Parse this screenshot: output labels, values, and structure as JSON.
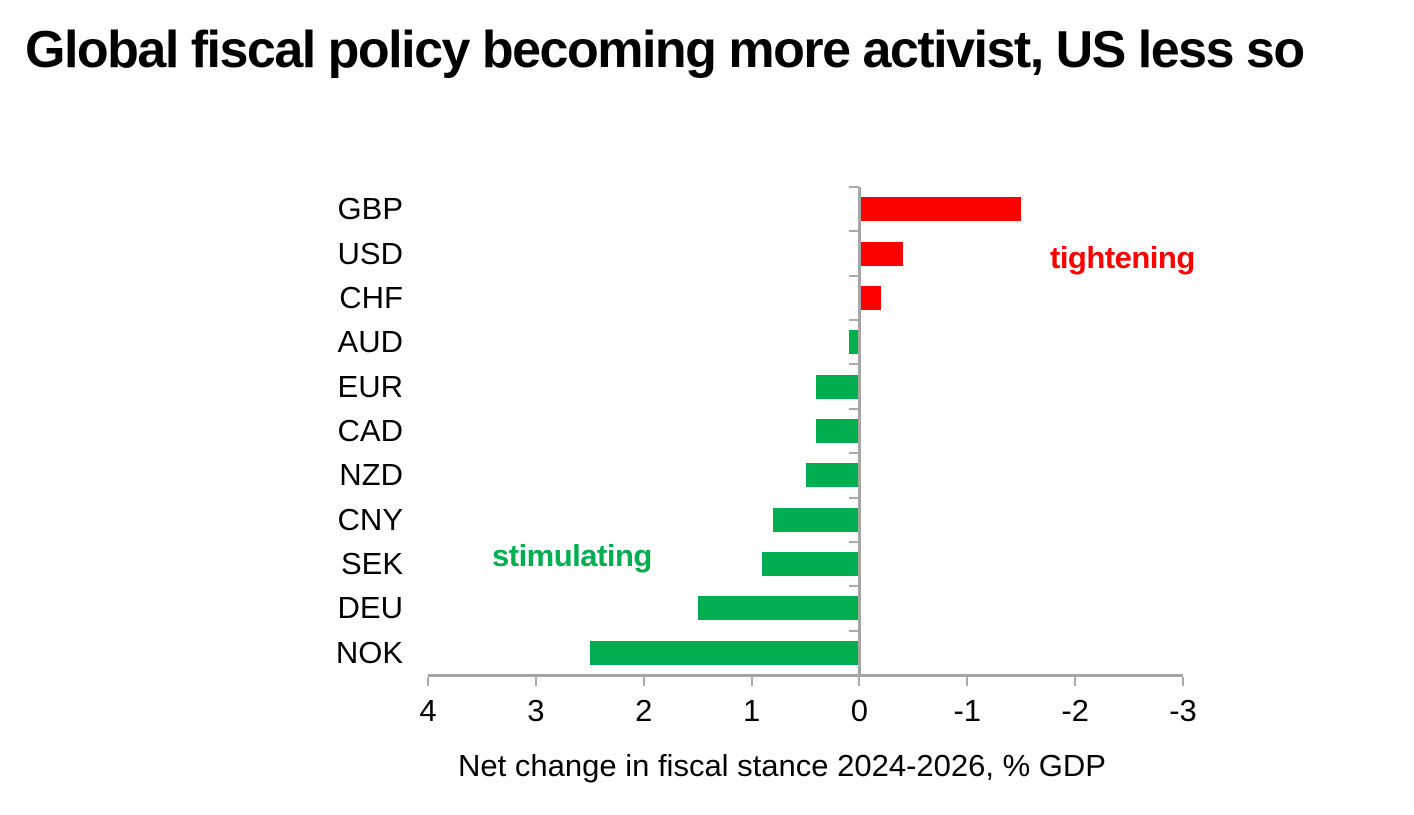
{
  "page": {
    "background": "#FFFFFF"
  },
  "header": {
    "title": "Global fiscal policy becoming more activist, US less so"
  },
  "chart_data": {
    "type": "bar",
    "orientation": "horizontal",
    "title": "Global fiscal policy becoming more activist, US less so",
    "categories": [
      "GBP",
      "USD",
      "CHF",
      "AUD",
      "EUR",
      "CAD",
      "NZD",
      "CNY",
      "SEK",
      "DEU",
      "NOK"
    ],
    "values": [
      -1.5,
      -0.4,
      -0.2,
      0.1,
      0.4,
      0.4,
      0.5,
      0.8,
      0.9,
      1.5,
      2.5
    ],
    "xlabel": "Net change in fiscal stance 2024-2026, % GDP",
    "x_ticks": [
      4,
      3,
      2,
      1,
      0,
      -1,
      -2,
      -3
    ],
    "x_range_left_to_right": [
      4,
      -3
    ],
    "axis_reversed": true,
    "grid": false,
    "legend": "none",
    "colors": {
      "positive_bar": "#00AE50",
      "negative_bar": "#FF0000",
      "axis": "#A6A6A6",
      "text": "#000000"
    },
    "annotations": [
      {
        "label": "tightening",
        "color": "#FF0000",
        "side": "negative"
      },
      {
        "label": "stimulating",
        "color": "#00AE50",
        "side": "positive"
      }
    ]
  }
}
